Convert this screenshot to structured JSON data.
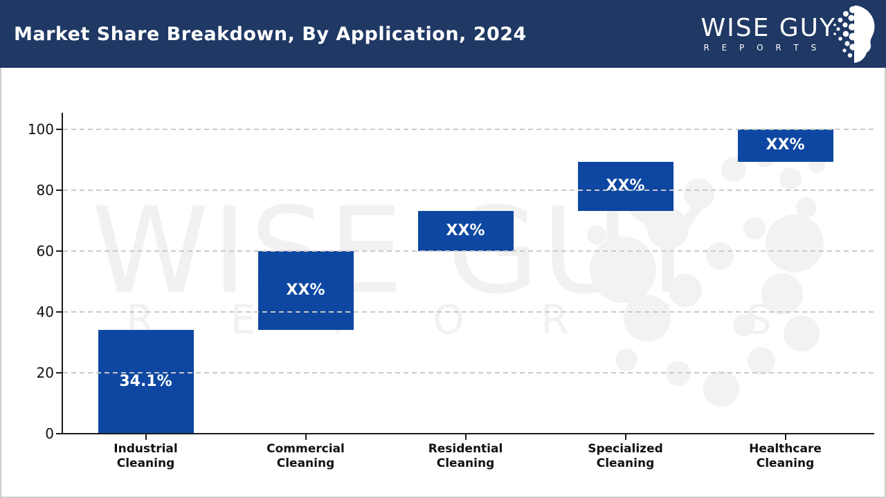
{
  "header": {
    "title": "Market Share Breakdown, By Application, 2024",
    "bg_color": "#1f3864",
    "logo_line1": "WISE GUY",
    "logo_line2": "R E P O R T S"
  },
  "watermark": {
    "line1": "WISE GUY",
    "line2": "R E P O R T S"
  },
  "chart_data": {
    "type": "bar",
    "subtype": "waterfall",
    "title": "Market Share Breakdown, By Application, 2024",
    "categories": [
      "Industrial Cleaning",
      "Commercial Cleaning",
      "Residential Cleaning",
      "Specialized Cleaning",
      "Healthcare Cleaning"
    ],
    "category_lines": [
      [
        "Industrial",
        "Cleaning"
      ],
      [
        "Commercial",
        "Cleaning"
      ],
      [
        "Residential",
        "Cleaning"
      ],
      [
        "Specialized",
        "Cleaning"
      ],
      [
        "Healthcare",
        "Cleaning"
      ]
    ],
    "segments": [
      {
        "category": "Industrial Cleaning",
        "start": 0,
        "end": 34.1,
        "label": "34.1%"
      },
      {
        "category": "Commercial Cleaning",
        "start": 34.1,
        "end": 60,
        "label": "XX%"
      },
      {
        "category": "Residential Cleaning",
        "start": 60,
        "end": 73.2,
        "label": "XX%"
      },
      {
        "category": "Specialized Cleaning",
        "start": 73.2,
        "end": 89.3,
        "label": "XX%"
      },
      {
        "category": "Healthcare Cleaning",
        "start": 89.3,
        "end": 100,
        "label": "XX%"
      }
    ],
    "ylabel": "",
    "xlabel": "",
    "yticks": [
      0,
      20,
      40,
      60,
      80,
      100
    ],
    "ylim": [
      0,
      105
    ],
    "bar_color": "#0d47a1",
    "grid": "horizontal dashed",
    "legend": "none"
  }
}
